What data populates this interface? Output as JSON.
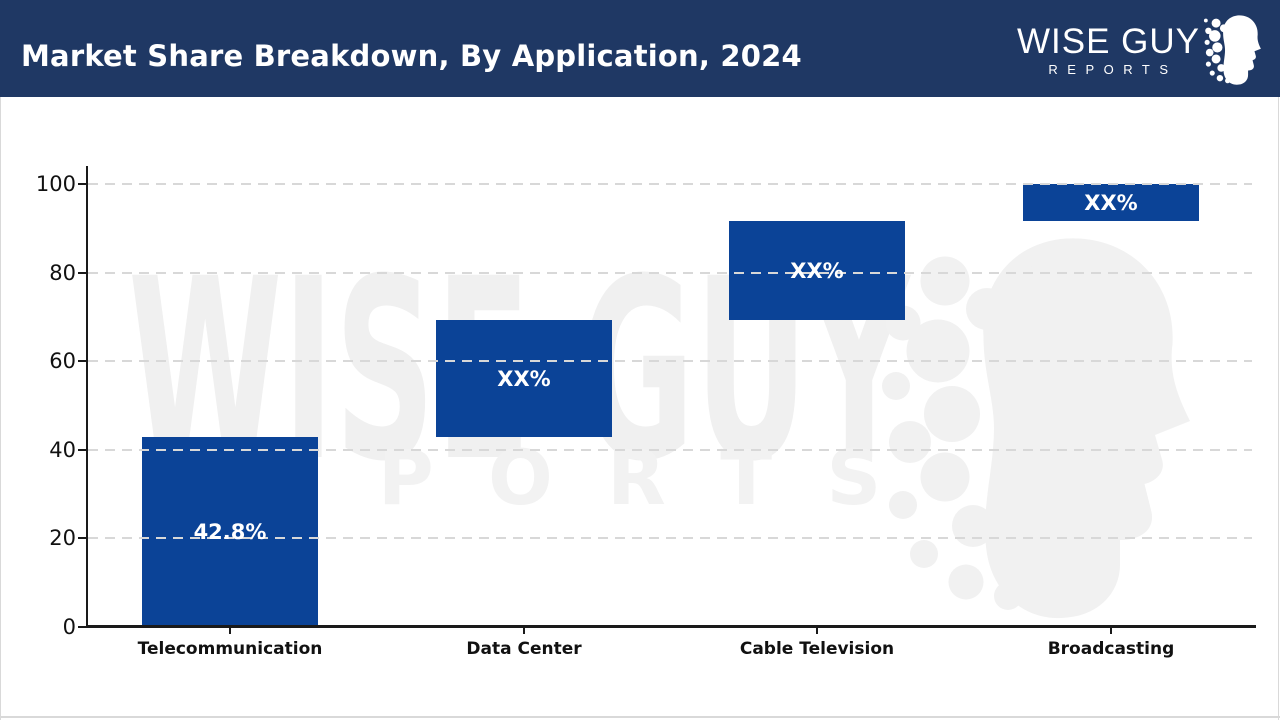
{
  "header": {
    "title": "Market Share Breakdown, By Application, 2024",
    "logo": {
      "line1": "WISE GUY",
      "line2": "REPORTS"
    }
  },
  "watermark": {
    "line1": "WISE GUY",
    "line2": "P O R T S"
  },
  "chart_data": {
    "type": "bar",
    "subtype": "waterfall",
    "title": "Market Share Breakdown, By Application, 2024",
    "categories": [
      "Telecommunication",
      "Data Center",
      "Cable Television",
      "Broadcasting"
    ],
    "segments": [
      {
        "category": "Telecommunication",
        "start": 0,
        "end": 42.8,
        "label": "42.8%"
      },
      {
        "category": "Data Center",
        "start": 42.8,
        "end": 69.2,
        "label": "XX%"
      },
      {
        "category": "Cable Television",
        "start": 69.2,
        "end": 91.6,
        "label": "XX%"
      },
      {
        "category": "Broadcasting",
        "start": 91.6,
        "end": 100,
        "label": "XX%"
      }
    ],
    "ylim": [
      0,
      100
    ],
    "yticks": [
      0,
      20,
      40,
      60,
      80,
      100
    ],
    "xlabel": "",
    "ylabel": "",
    "grid": "horizontal-dashed",
    "legend": "none",
    "bar_color": "#0b4397",
    "label_color": "#ffffff"
  },
  "colors": {
    "header_bg": "#1f3864",
    "bar": "#0b4397",
    "grid": "#d8d8d8",
    "axis": "#1a1a1a",
    "watermark": "#f0f0f0"
  }
}
